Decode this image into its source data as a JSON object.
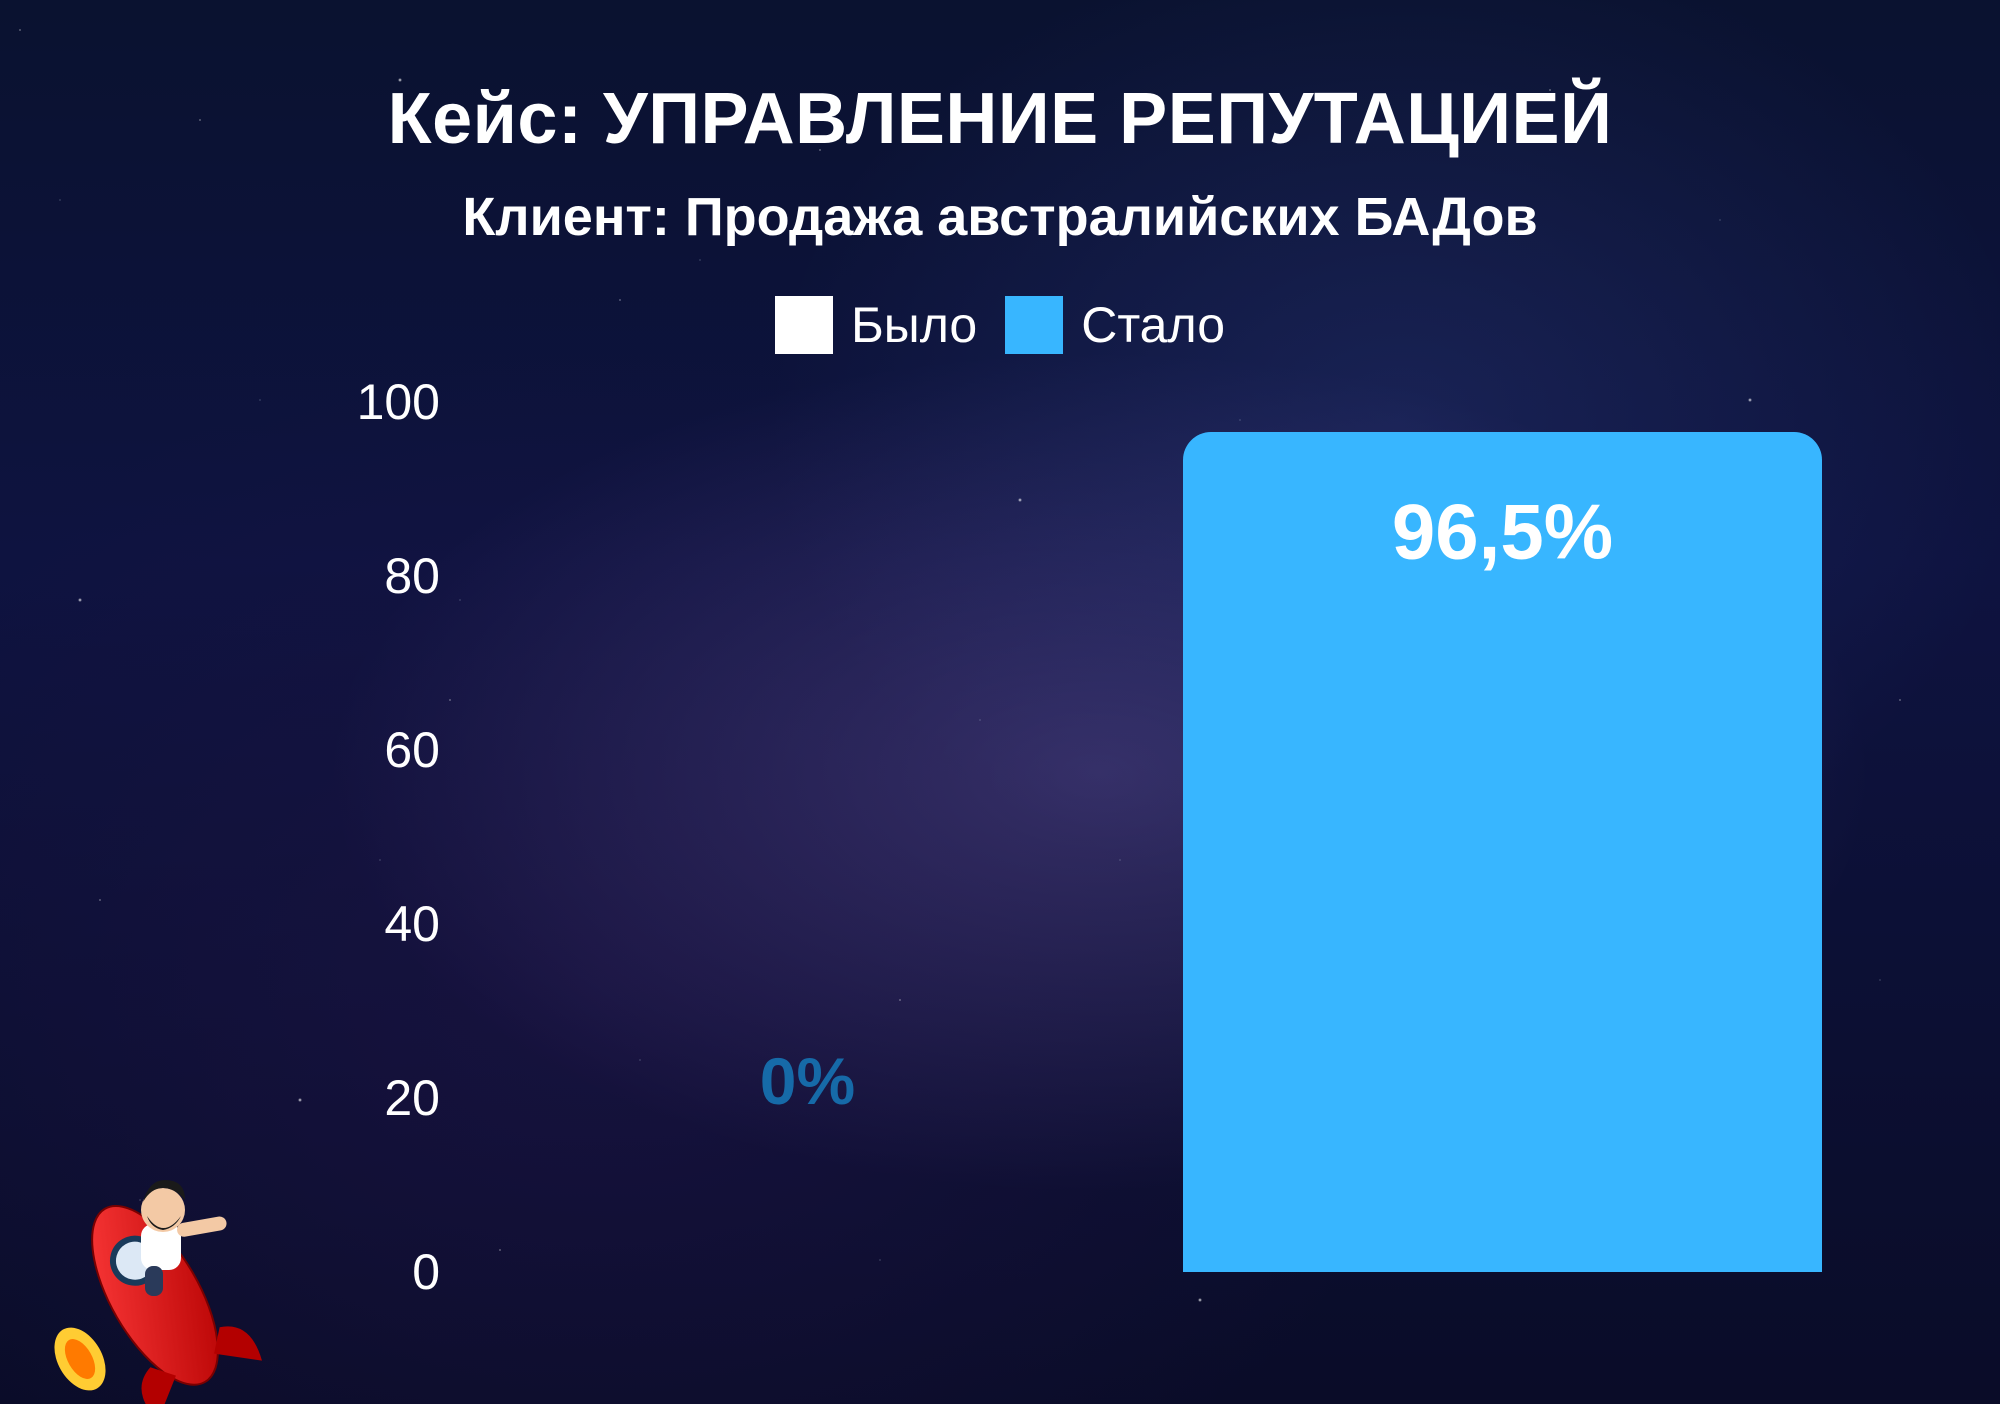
{
  "title": "Кейс: УПРАВЛЕНИЕ РЕПУТАЦИЕЙ",
  "subtitle": "Клиент: Продажа австралийских БАДов",
  "legend": {
    "items": [
      {
        "label": "Было",
        "color": "#ffffff"
      },
      {
        "label": "Стало",
        "color": "#38b6ff"
      }
    ],
    "label_fontsize": 50,
    "label_color": "#ffffff",
    "swatch_size": 58
  },
  "chart": {
    "type": "bar",
    "ylim": [
      0,
      100
    ],
    "ytick_step": 20,
    "yticks": [
      0,
      20,
      40,
      60,
      80,
      100
    ],
    "tick_fontsize": 50,
    "tick_color": "#ffffff",
    "background_color": "transparent",
    "bar_width": 0.92,
    "bar_border_radius": 28,
    "series": [
      {
        "name": "Было",
        "value": 0,
        "display_label": "0%",
        "bar_color": "#ffffff",
        "label_color": "#166aa8",
        "label_fontsize": 66,
        "label_position": "above"
      },
      {
        "name": "Стало",
        "value": 96.5,
        "display_label": "96,5%",
        "bar_color": "#38b6ff",
        "label_color": "#ffffff",
        "label_fontsize": 78,
        "label_position": "inside-top"
      }
    ]
  },
  "typography": {
    "title_fontsize": 72,
    "title_weight": 800,
    "title_color": "#ffffff",
    "subtitle_fontsize": 54,
    "subtitle_weight": 700,
    "subtitle_color": "#ffffff",
    "font_family": "Segoe UI, Helvetica Neue, Arial, sans-serif"
  },
  "decoration": {
    "rocket_icon": "rocket-with-rider-icon"
  }
}
